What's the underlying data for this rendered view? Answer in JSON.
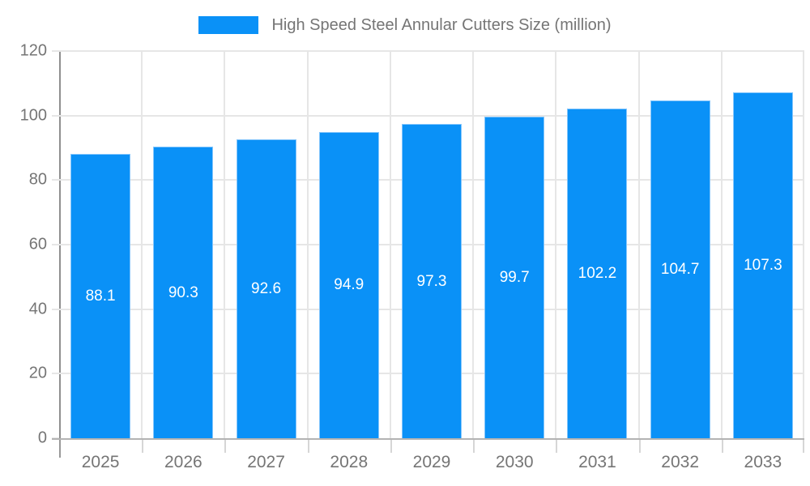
{
  "legend": {
    "label": "High Speed Steel Annular Cutters Size (million)"
  },
  "chart_data": {
    "type": "bar",
    "title": "High Speed Steel Annular Cutters Size (million)",
    "categories": [
      "2025",
      "2026",
      "2027",
      "2028",
      "2029",
      "2030",
      "2031",
      "2032",
      "2033"
    ],
    "series": [
      {
        "name": "High Speed Steel Annular Cutters Size (million)",
        "values": [
          88.1,
          90.3,
          92.6,
          94.9,
          97.3,
          99.7,
          102.2,
          104.7,
          107.3
        ]
      }
    ],
    "bar_labels": [
      "88.1",
      "90.3",
      "92.6",
      "94.9",
      "97.3",
      "99.7",
      "102.2",
      "104.7",
      "107.3"
    ],
    "xlabel": "",
    "ylabel": "",
    "ylim": [
      0,
      120
    ],
    "yticks": [
      0,
      20,
      40,
      60,
      80,
      100,
      120
    ],
    "grid": true,
    "legend_position": "top-center"
  },
  "colors": {
    "bar_fill": "#0a91f7",
    "bar_edge": "#85c6fc",
    "grid": "#e6e6e6",
    "y_axis_line": "#8f8f8f",
    "x_axis_line": "#b3b3b3",
    "tick": "#d6d6d6",
    "first_tick": "#999999",
    "text": "#757575",
    "bar_label": "#ffffff",
    "background": "#ffffff"
  }
}
